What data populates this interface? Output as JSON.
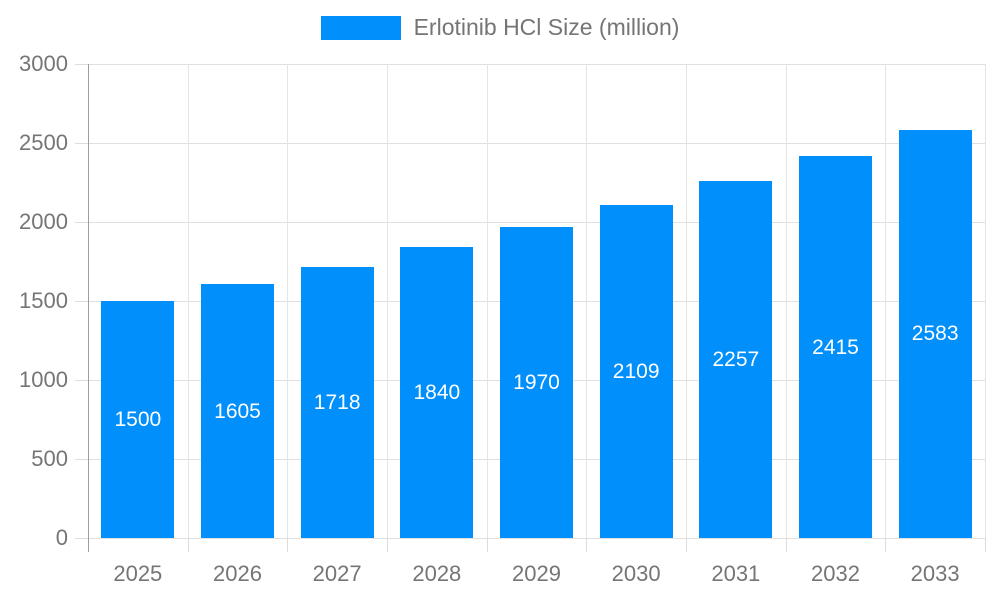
{
  "chart_data": {
    "type": "bar",
    "title": "",
    "legend": "Erlotinib HCl Size (million)",
    "legend_position": "top-center",
    "categories": [
      "2025",
      "2026",
      "2027",
      "2028",
      "2029",
      "2030",
      "2031",
      "2032",
      "2033"
    ],
    "values": [
      1500,
      1605,
      1718,
      1840,
      1970,
      2109,
      2257,
      2415,
      2583
    ],
    "xlabel": "",
    "ylabel": "",
    "ylim": [
      0,
      3000
    ],
    "y_ticks": [
      0,
      500,
      1000,
      1500,
      2000,
      2500,
      3000
    ],
    "grid": "horizontal-and-vertical",
    "value_labels": "inside-center-white",
    "colors": {
      "bar": "#008FFB",
      "axis_text": "#757575",
      "grid": "#e0e0e0",
      "axis_line": "#9e9e9e",
      "value_label": "#ffffff",
      "background": "#ffffff"
    }
  }
}
